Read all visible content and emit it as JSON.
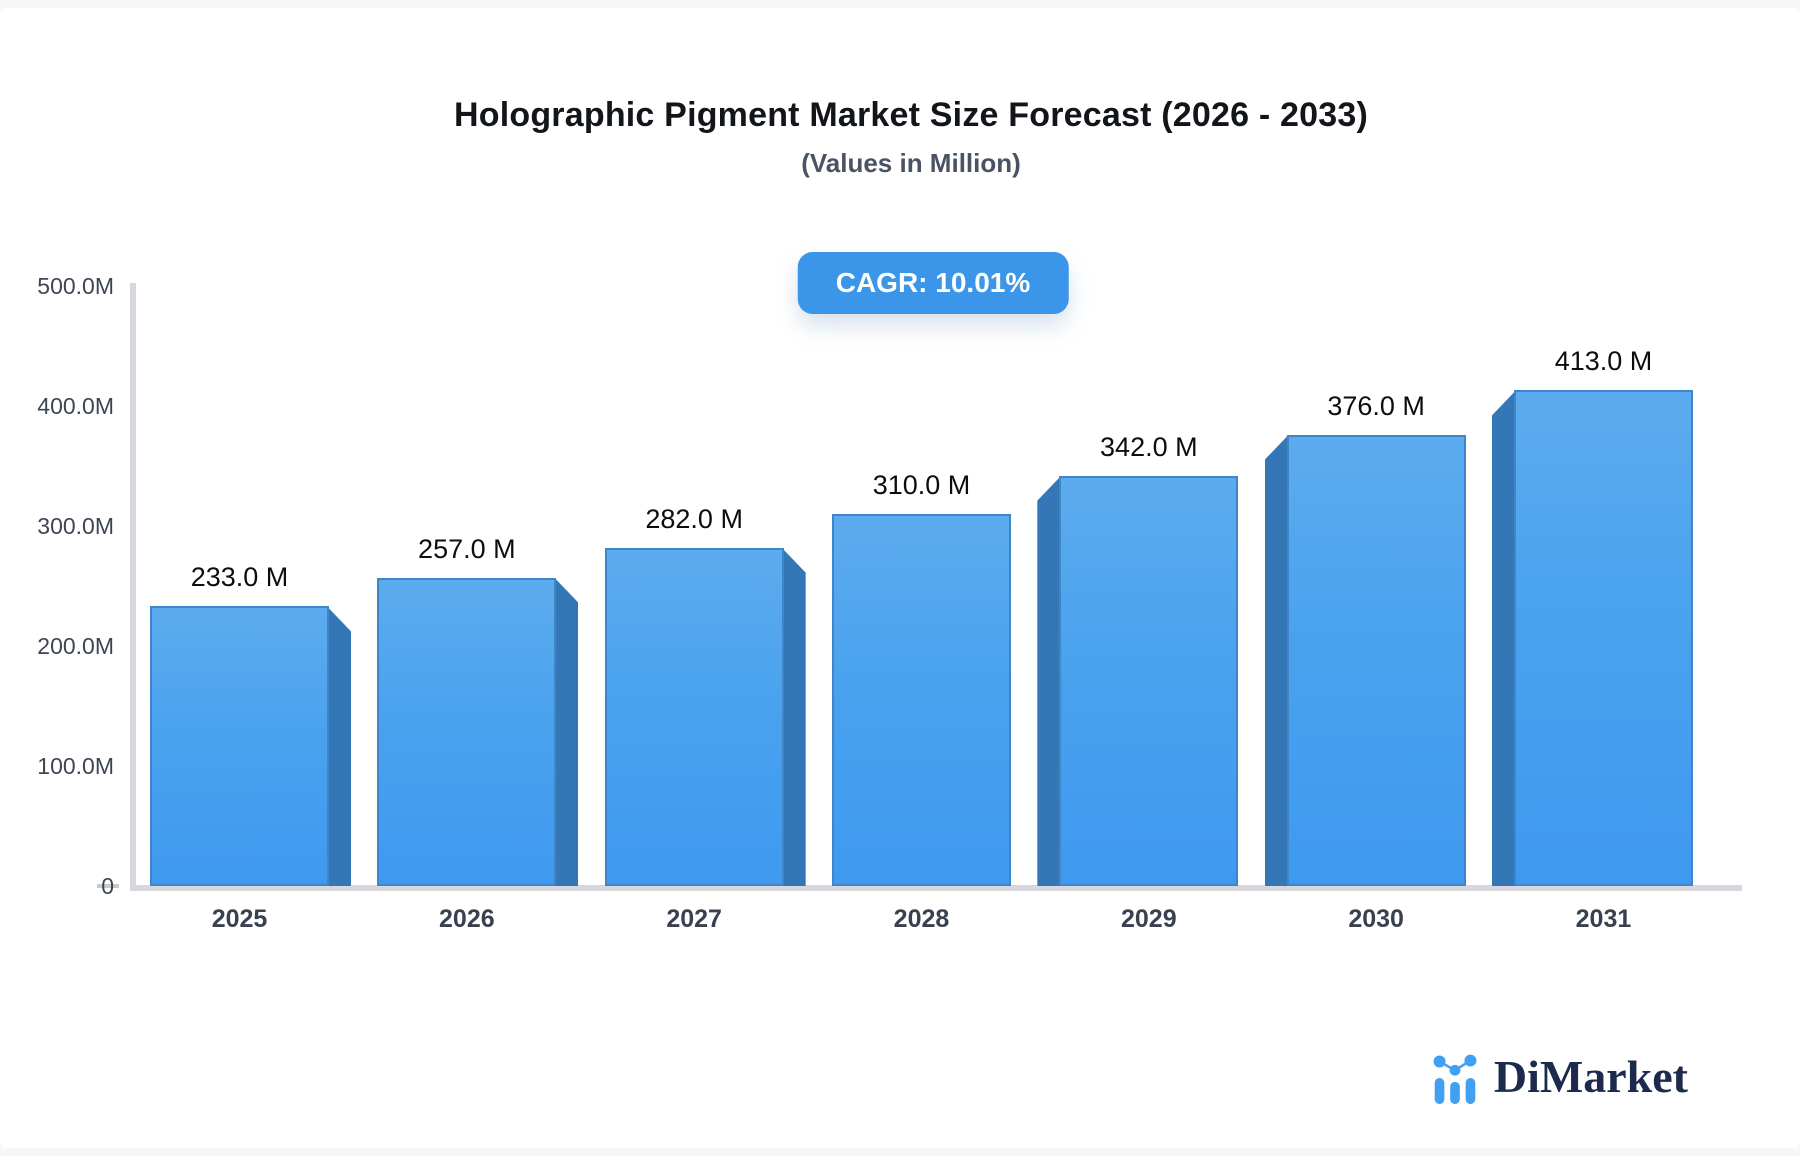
{
  "page": {
    "title": "Holographic Pigment Market Size Forecast (2026 - 2033)",
    "subtitle": "(Values in Million)",
    "cagr_badge": "CAGR: 10.01%"
  },
  "chart_data": {
    "type": "bar",
    "title": "Holographic Pigment Market Size Forecast (2026 - 2033)",
    "subtitle": "(Values in Million)",
    "unit": "Million",
    "cagr": "10.01%",
    "categories": [
      "2025",
      "2026",
      "2027",
      "2028",
      "2029",
      "2030",
      "2031"
    ],
    "values": [
      233.0,
      257.0,
      282.0,
      310.0,
      342.0,
      376.0,
      413.0
    ],
    "value_labels": [
      "233.0 M",
      "257.0 M",
      "282.0 M",
      "310.0 M",
      "342.0 M",
      "376.0 M",
      "413.0 M"
    ],
    "ylim": [
      0,
      500
    ],
    "yticks": [
      {
        "label": "500.0M",
        "value": 500
      },
      {
        "label": "400.0M",
        "value": 400
      },
      {
        "label": "300.0M",
        "value": 300
      },
      {
        "label": "200.0M",
        "value": 200
      },
      {
        "label": "100.0M",
        "value": 100
      },
      {
        "label": "0",
        "value": 0
      }
    ],
    "grid": false,
    "legend": false,
    "bar_color": "#459FEF",
    "bar_side_color": "#3377B7",
    "axis_color": "#D7D7DD"
  },
  "badge_colors": {
    "background": "#3B95E9",
    "text": "#FFFFFF"
  },
  "logo": {
    "name": "DiMarket",
    "icon": "mini-bar-chart-icon",
    "icon_color": "#42A0F0",
    "text_color": "#1C2B4D"
  }
}
